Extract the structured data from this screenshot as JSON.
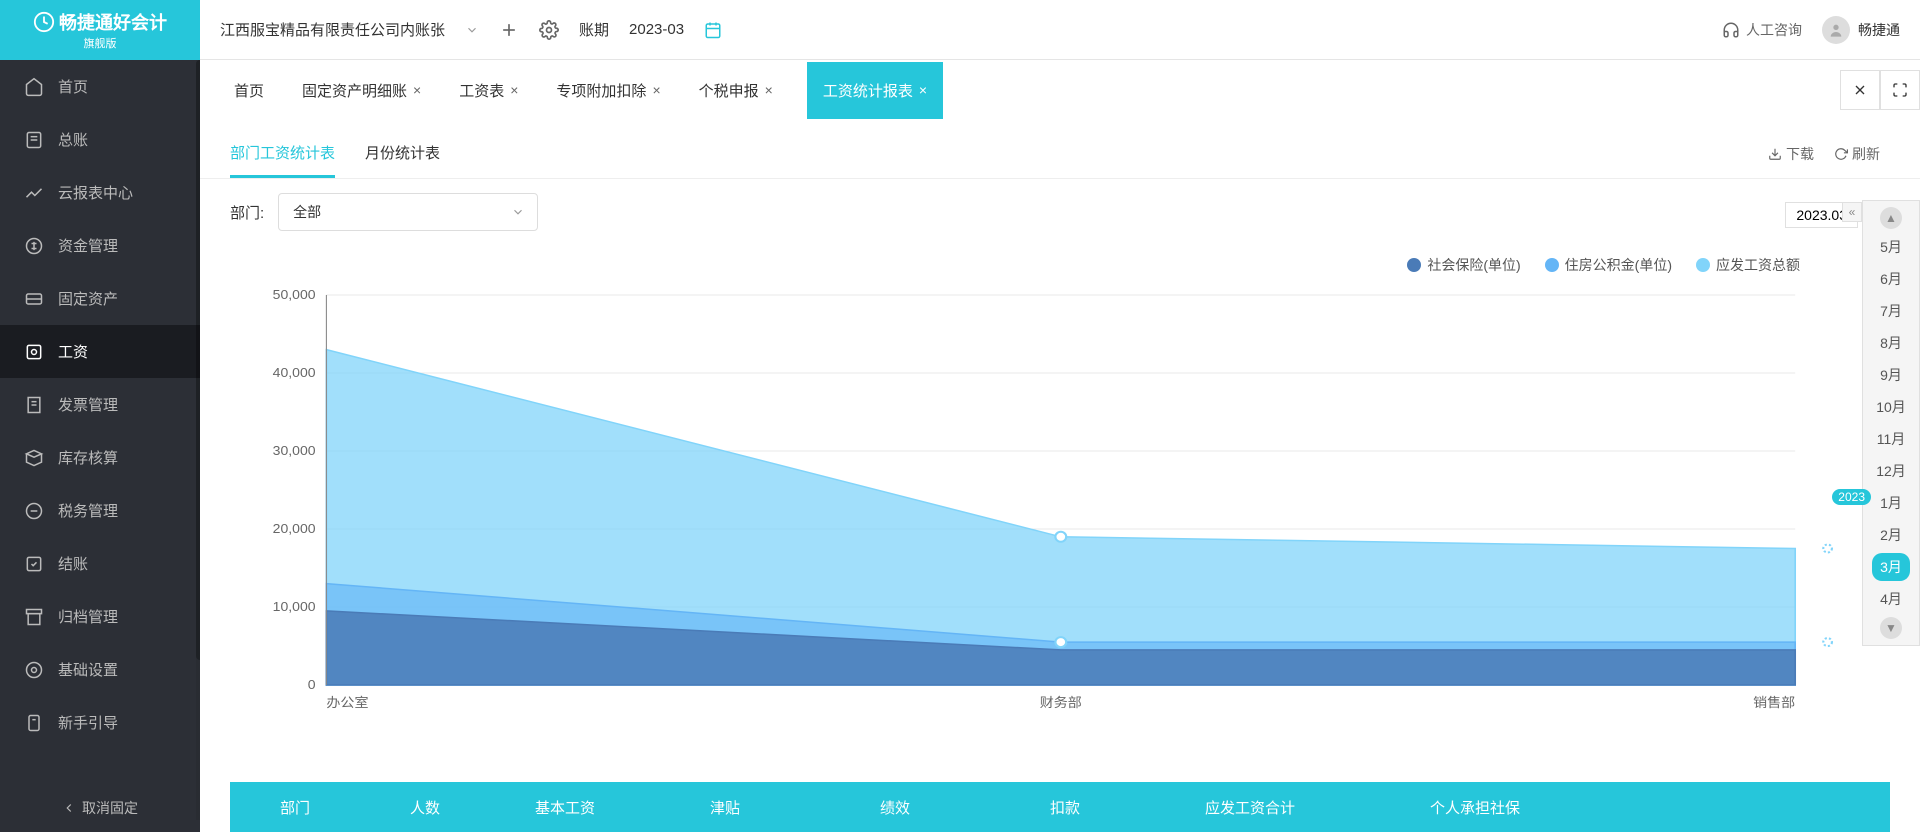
{
  "logo": {
    "name": "畅捷通好会计",
    "edition": "旗舰版"
  },
  "header": {
    "company": "江西服宝精品有限责任公司内账张",
    "period_label": "账期",
    "period_value": "2023-03",
    "support": "人工咨询",
    "user": "畅捷通"
  },
  "sidebar": {
    "items": [
      {
        "label": "首页",
        "icon": "home"
      },
      {
        "label": "总账",
        "icon": "ledger"
      },
      {
        "label": "云报表中心",
        "icon": "report"
      },
      {
        "label": "资金管理",
        "icon": "funds"
      },
      {
        "label": "固定资产",
        "icon": "asset"
      },
      {
        "label": "工资",
        "icon": "salary",
        "active": true
      },
      {
        "label": "发票管理",
        "icon": "invoice"
      },
      {
        "label": "库存核算",
        "icon": "stock"
      },
      {
        "label": "税务管理",
        "icon": "tax"
      },
      {
        "label": "结账",
        "icon": "close"
      },
      {
        "label": "归档管理",
        "icon": "archive"
      },
      {
        "label": "基础设置",
        "icon": "settings"
      },
      {
        "label": "新手引导",
        "icon": "guide"
      }
    ],
    "collapse": "取消固定"
  },
  "tabs": [
    {
      "label": "首页",
      "closable": false
    },
    {
      "label": "固定资产明细账",
      "closable": true
    },
    {
      "label": "工资表",
      "closable": true
    },
    {
      "label": "专项附加扣除",
      "closable": true
    },
    {
      "label": "个税申报",
      "closable": true
    },
    {
      "label": "工资统计报表",
      "closable": true,
      "active": true
    }
  ],
  "sub_tabs": [
    {
      "label": "部门工资统计表",
      "active": true
    },
    {
      "label": "月份统计表"
    }
  ],
  "actions": {
    "download": "下载",
    "refresh": "刷新"
  },
  "filter": {
    "label": "部门:",
    "value": "全部"
  },
  "chart": {
    "type": "area",
    "legend": [
      {
        "label": "社会保险(单位)",
        "color": "#4a7bb7"
      },
      {
        "label": "住房公积金(单位)",
        "color": "#64b5f6"
      },
      {
        "label": "应发工资总额",
        "color": "#81d4fa"
      }
    ],
    "categories": [
      "办公室",
      "财务部",
      "销售部"
    ],
    "series": {
      "total_payable": {
        "values": [
          43000,
          19000,
          17500
        ],
        "color": "#81d4fa",
        "opacity": 0.75
      },
      "housing_fund": {
        "values": [
          13000,
          5500,
          5500
        ],
        "color": "#64b5f6",
        "opacity": 0.65
      },
      "social_ins": {
        "values": [
          9500,
          4500,
          4500
        ],
        "color": "#4a7bb7",
        "opacity": 0.85
      }
    },
    "y": {
      "min": 0,
      "max": 50000,
      "step": 10000,
      "ticks": [
        "0",
        "10,000",
        "20,000",
        "30,000",
        "40,000",
        "50,000"
      ]
    },
    "grid_color": "#e8e8e8",
    "axis_color": "#888",
    "label_fontsize": 13,
    "marker_color": "#81d4fa"
  },
  "table_columns": [
    "部门",
    "人数",
    "基本工资",
    "津贴",
    "绩效",
    "扣款",
    "应发工资合计",
    "个人承担社保"
  ],
  "month_rail": {
    "current": "2023.03",
    "months": [
      "5月",
      "6月",
      "7月",
      "8月",
      "9月",
      "10月",
      "11月",
      "12月",
      "1月",
      "2月",
      "3月",
      "4月"
    ],
    "selected": "3月",
    "year_badge": "2023",
    "year_badge_before": "1月"
  }
}
